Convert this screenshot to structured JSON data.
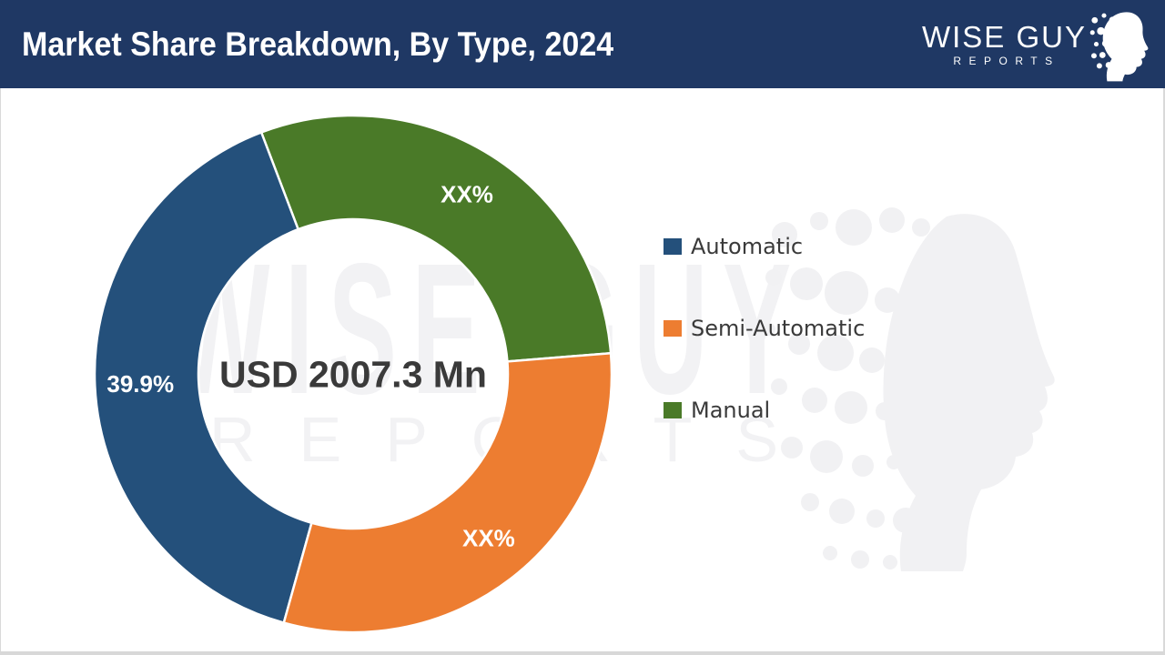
{
  "header": {
    "title": "Market Share Breakdown, By Type, 2024",
    "logo": {
      "line1": "WISE GUY",
      "line2": "REPORTS"
    }
  },
  "watermark": {
    "line1": "WISE GUY",
    "line2": "REPORTS"
  },
  "chart_data": {
    "type": "pie",
    "subtype": "donut",
    "title": "Market Share Breakdown, By Type, 2024",
    "center_label": "USD 2007.3 Mn",
    "start_angle_deg": 4.6,
    "hole_ratio": 0.6,
    "segments": [
      {
        "name": "Manual",
        "display_label": "XX%",
        "percent": 29.5,
        "percent_shown": false,
        "color": "#4a7a28"
      },
      {
        "name": "Automatic",
        "display_label": "39.9%",
        "percent": 39.9,
        "percent_shown": true,
        "color": "#24507b"
      },
      {
        "name": "Semi-Automatic",
        "display_label": "XX%",
        "percent": 30.6,
        "percent_shown": false,
        "color": "#ed7d31"
      }
    ],
    "legend": {
      "position": "right",
      "items": [
        {
          "label": "Automatic",
          "color": "#24507b"
        },
        {
          "label": "Semi-Automatic",
          "color": "#ed7d31"
        },
        {
          "label": "Manual",
          "color": "#4a7a28"
        }
      ]
    }
  },
  "colors": {
    "header_bg": "#1f3864",
    "header_text": "#ffffff",
    "segment_label_text": "#ffffff",
    "center_text": "#3a3a3a",
    "legend_text": "#3a3a3a",
    "watermark": "#f2f2f4",
    "border": "#d9d9d9",
    "bottom_strip": "#d8d8d8",
    "page_bg": "#ffffff"
  }
}
